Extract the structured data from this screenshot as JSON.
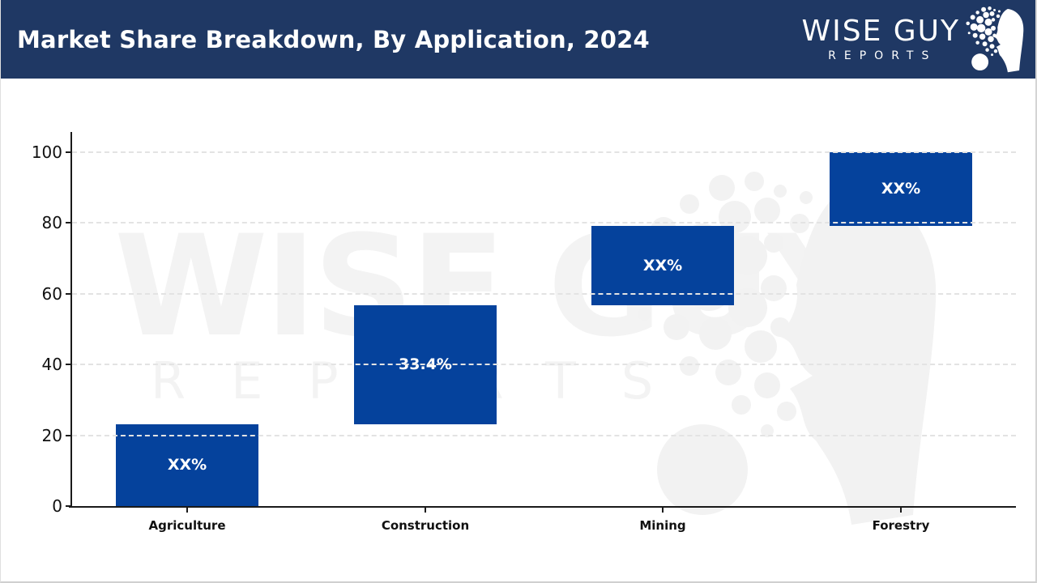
{
  "header": {
    "title": "Market Share Breakdown, By Application, 2024",
    "bg_color": "#1f3864",
    "logo": {
      "brand": "WISE GUY",
      "sub": "REPORTS"
    }
  },
  "watermark": {
    "brand": "WISE GUY",
    "sub": "REPORTS"
  },
  "chart_data": {
    "type": "bar",
    "subtype": "waterfall",
    "title": "Market Share Breakdown, By Application, 2024",
    "categories": [
      "Agriculture",
      "Construction",
      "Mining",
      "Forestry"
    ],
    "bars": [
      {
        "category": "Agriculture",
        "start": 0,
        "end": 23.2,
        "label": "XX%"
      },
      {
        "category": "Construction",
        "start": 23.2,
        "end": 56.6,
        "label": "33.4%"
      },
      {
        "category": "Mining",
        "start": 56.6,
        "end": 79.1,
        "label": "XX%"
      },
      {
        "category": "Forestry",
        "start": 79.1,
        "end": 100,
        "label": "XX%"
      }
    ],
    "ylim": [
      0,
      100
    ],
    "yticks": [
      0,
      20,
      40,
      60,
      80,
      100
    ],
    "bar_color": "#05429c",
    "grid": "horizontal-dashed-over-bars",
    "legend": "none"
  }
}
